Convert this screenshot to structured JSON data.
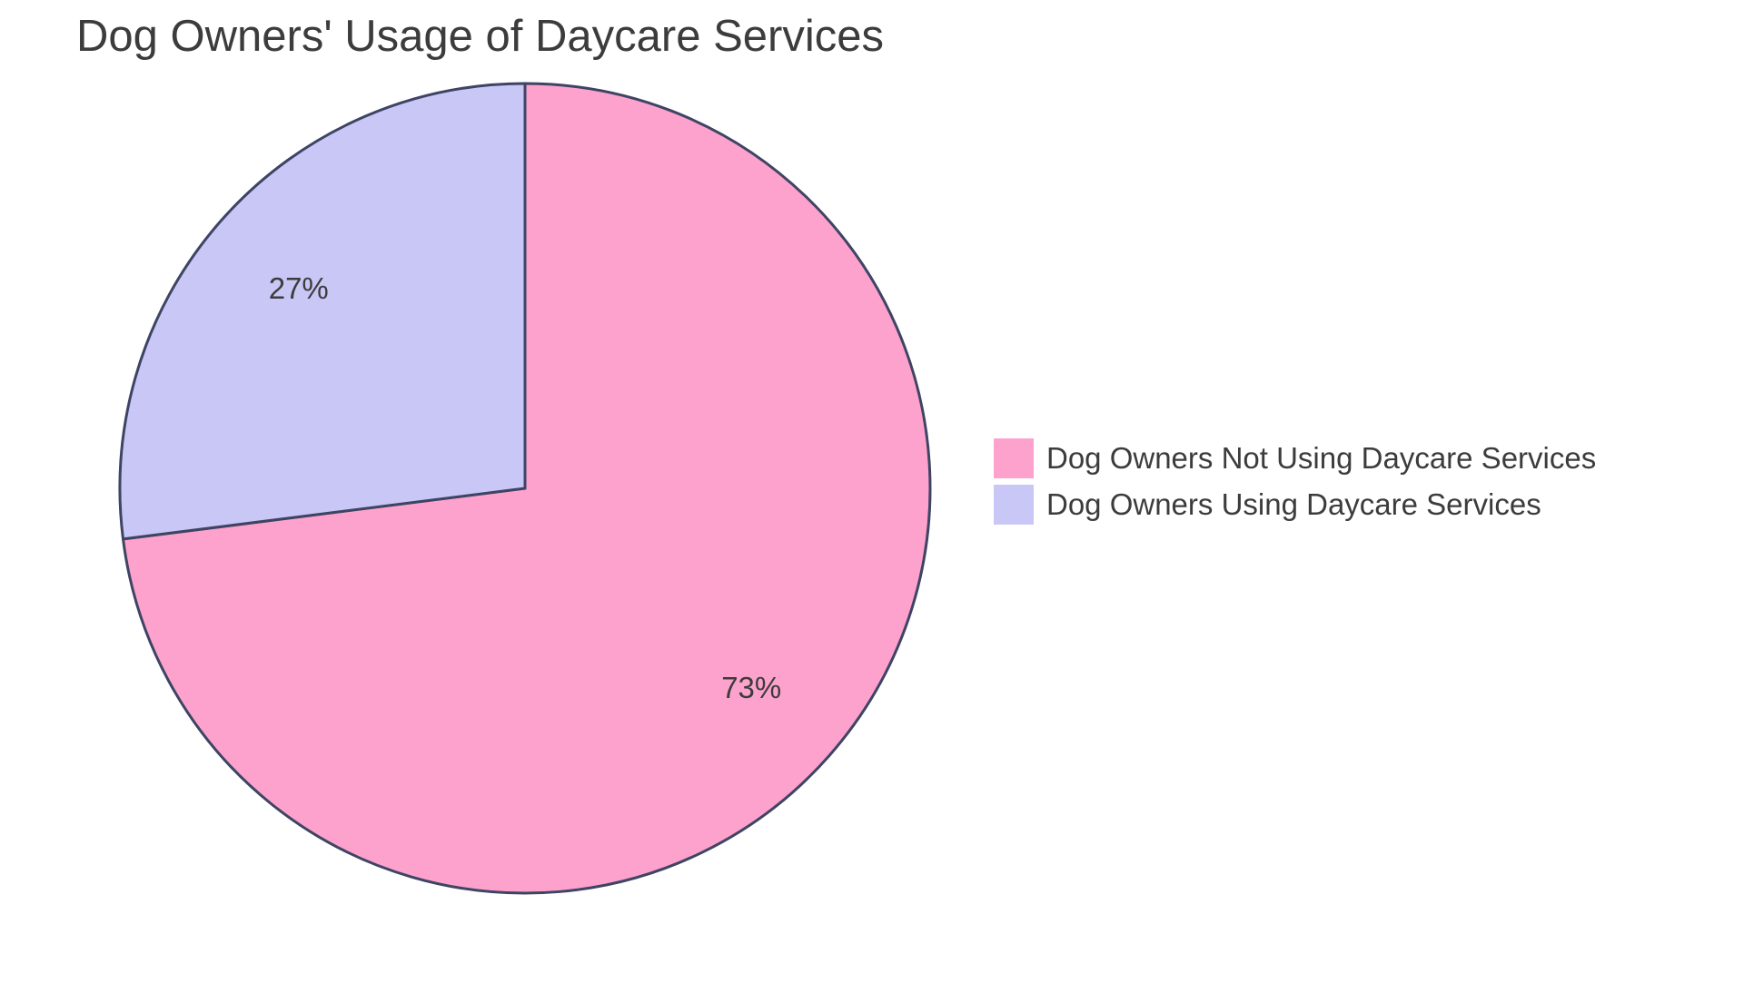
{
  "page": {
    "background_color": "#ffffff"
  },
  "chart_data": {
    "type": "pie",
    "title": "Dog Owners' Usage of Daycare Services",
    "labels": [
      "Dog Owners Not Using Daycare Services",
      "Dog Owners Using Daycare Services"
    ],
    "values": [
      73,
      27
    ],
    "total": 100,
    "percent_labels": [
      "73%",
      "27%"
    ],
    "colors": [
      "#FCA2CD",
      "#C9C7F6"
    ],
    "slice_border_color": "#3E4463",
    "slice_border_width": 3,
    "text_color": "#3c3c3c",
    "start_angle": "12-oclock",
    "direction": "clockwise",
    "legend_position": "right",
    "labels_inside": true
  }
}
